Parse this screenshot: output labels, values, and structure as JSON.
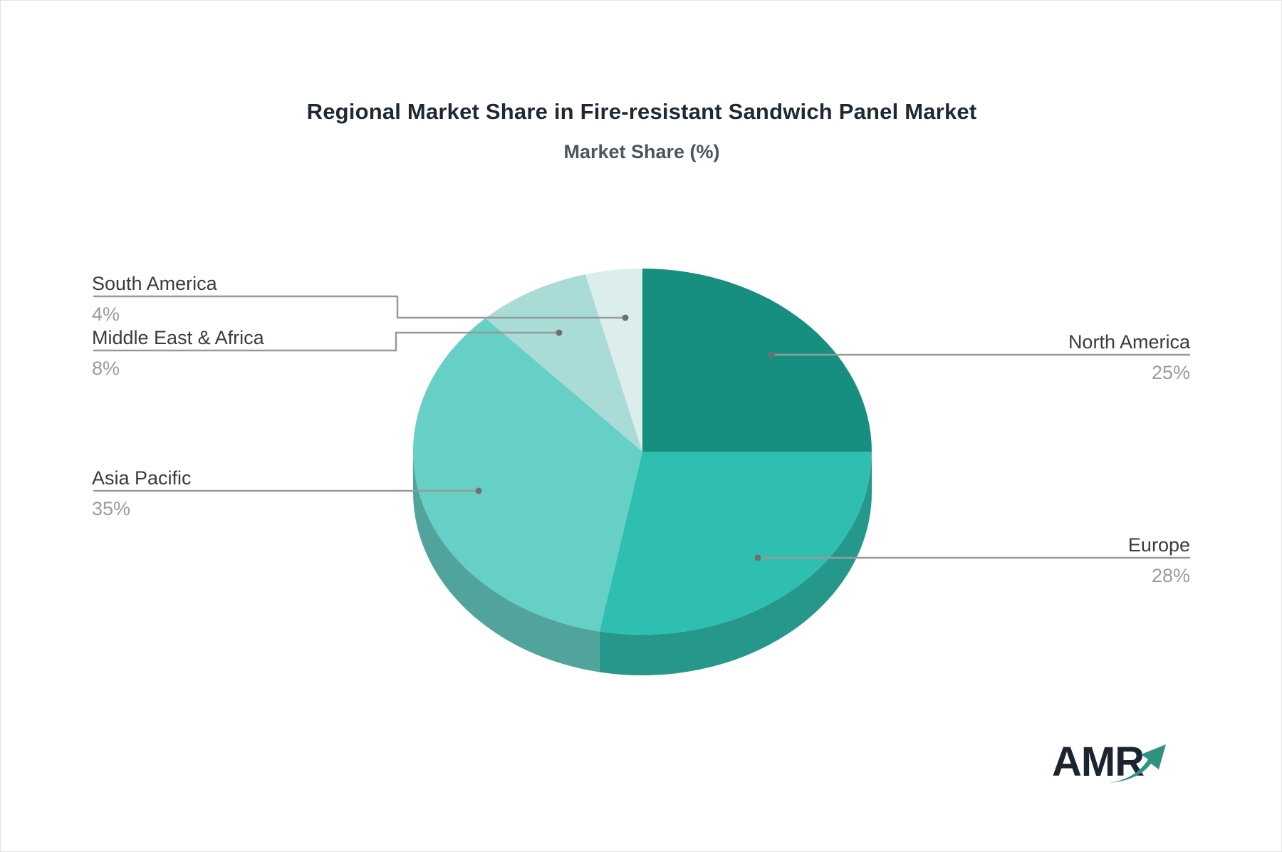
{
  "title": "Regional Market Share in Fire-resistant Sandwich Panel Market",
  "subtitle": "Market Share (%)",
  "logo": {
    "text": "AMR"
  },
  "colors": {
    "leader_line": "#999999",
    "dot": "#6f6f6f",
    "label_text": "#3b3b3b",
    "value_text": "#9b9b9b",
    "logo_text": "#1b2430",
    "logo_arrow": "#2e9181"
  },
  "chart_data": {
    "type": "pie",
    "title": "Regional Market Share in Fire-resistant Sandwich Panel Market",
    "subtitle": "Market Share (%)",
    "unit": "%",
    "style": "3d-pie",
    "start_angle": "12 o'clock, clockwise",
    "legend_position": "callout-labels",
    "slices": [
      {
        "label": "North America",
        "value": 25,
        "display": "25%",
        "color": "#168e80"
      },
      {
        "label": "Europe",
        "value": 28,
        "display": "28%",
        "color": "#2fbfb0"
      },
      {
        "label": "Asia Pacific",
        "value": 35,
        "display": "35%",
        "color": "#66cfc6"
      },
      {
        "label": "Middle East & Africa",
        "value": 8,
        "display": "8%",
        "color": "#a9dcd6"
      },
      {
        "label": "South America",
        "value": 4,
        "display": "4%",
        "color": "#dceeec"
      }
    ]
  }
}
